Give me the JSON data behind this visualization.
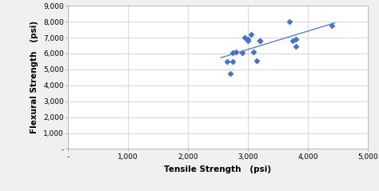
{
  "title": "",
  "xlabel": "Tensile Strength   (psi)",
  "ylabel": "Flexural Strength   (psi)",
  "scatter_x": [
    2650,
    2700,
    2750,
    2750,
    2800,
    2900,
    2950,
    3000,
    3000,
    3050,
    3100,
    3150,
    3200,
    3200,
    3700,
    3750,
    3800,
    3800,
    4400
  ],
  "scatter_y": [
    5500,
    4750,
    5500,
    6050,
    6100,
    6050,
    7000,
    6800,
    6900,
    7200,
    6100,
    5550,
    6800,
    6800,
    8000,
    6800,
    6900,
    6450,
    7750
  ],
  "point_color": "#4472C4",
  "line_color": "#5b7fc4",
  "xlim": [
    0,
    5000
  ],
  "ylim": [
    0,
    9000
  ],
  "xticks": [
    0,
    1000,
    2000,
    3000,
    4000,
    5000
  ],
  "yticks": [
    0,
    1000,
    2000,
    3000,
    4000,
    5000,
    6000,
    7000,
    8000,
    9000
  ],
  "xtick_labels": [
    "-",
    "1,000",
    "2,000",
    "3,000",
    "4,000",
    "5,000"
  ],
  "ytick_labels": [
    "-",
    "1,000",
    "2,000",
    "3,000",
    "4,000",
    "5,000",
    "6,000",
    "7,000",
    "8,000",
    "9,000"
  ],
  "bg_color": "#f0f0f0",
  "plot_bg_color": "#ffffff",
  "grid_color": "#c8c8c8",
  "marker": "D",
  "marker_size": 4,
  "font_size_axis_label": 7.5,
  "font_size_tick": 6.5,
  "line_start_x": 2550,
  "line_end_x": 4450
}
